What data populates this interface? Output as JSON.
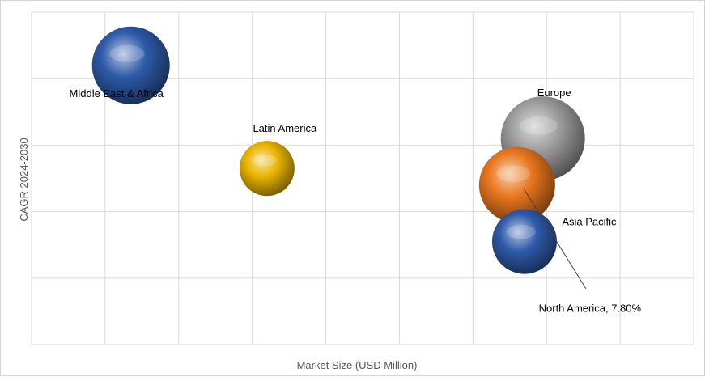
{
  "chart_data": {
    "type": "scatter",
    "subtype": "bubble",
    "xlabel": "Market Size (USD Million)",
    "ylabel": "CAGR 2024-2030",
    "xlim": [
      0,
      9
    ],
    "ylim": [
      0,
      5
    ],
    "grid": true,
    "axis_tick_labels_shown": false,
    "series": [
      {
        "name": "Middle East & Africa",
        "x": 1.35,
        "y": 4.2,
        "size": 48,
        "color": "#2e5aa8",
        "label": "Middle East & Africa"
      },
      {
        "name": "Latin America",
        "x": 3.2,
        "y": 2.65,
        "size": 34,
        "color": "#e8b400",
        "label": "Latin America"
      },
      {
        "name": "Europe",
        "x": 6.95,
        "y": 3.1,
        "size": 52,
        "color": "#9c9c9c",
        "label": "Europe"
      },
      {
        "name": "North America",
        "x": 6.6,
        "y": 2.4,
        "size": 47,
        "color": "#e8761e",
        "label": "North America, 7.80%"
      },
      {
        "name": "Asia Pacific",
        "x": 6.7,
        "y": 1.55,
        "size": 40,
        "color": "#2e5aa8",
        "label": "Asia Pacific"
      }
    ]
  }
}
